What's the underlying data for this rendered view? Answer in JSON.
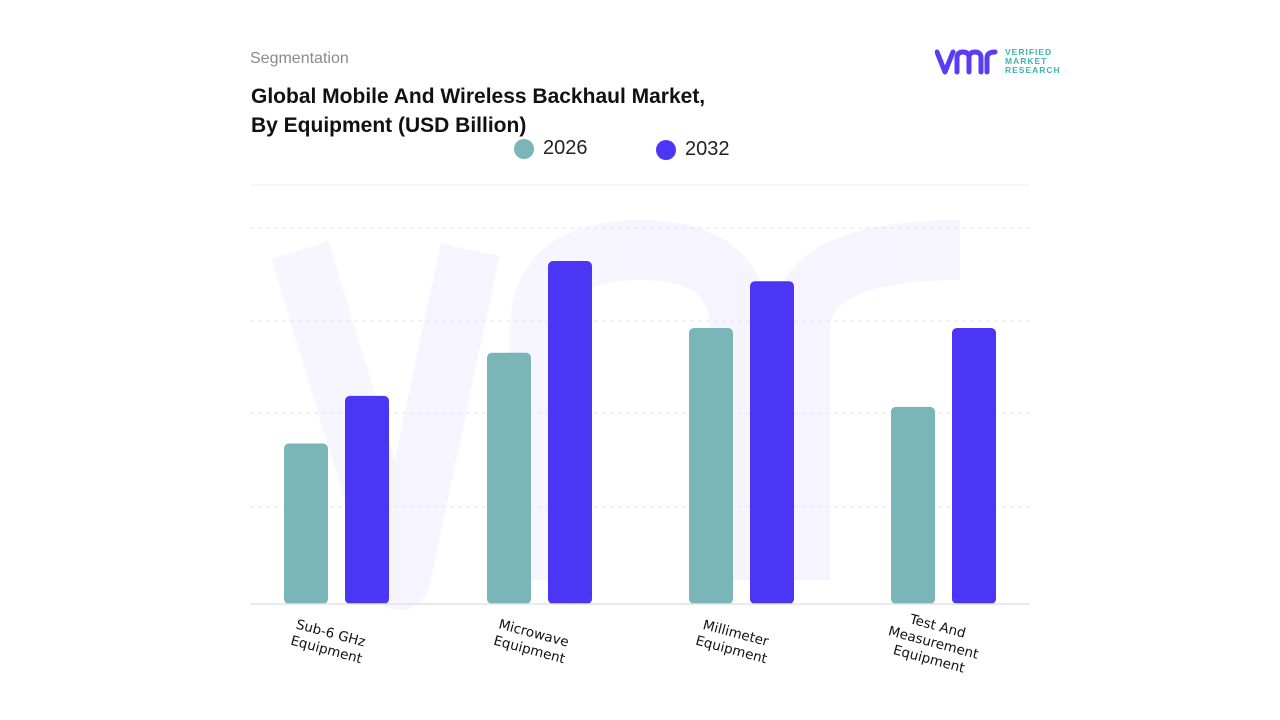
{
  "header": {
    "segment_label": "Segmentation",
    "title_line1": "Global Mobile And Wireless Backhaul Market,",
    "title_line2": "By Equipment (USD Billion)"
  },
  "logo": {
    "mark": "vmr",
    "line1": "VERIFIED",
    "line2": "MARKET",
    "line3": "RESEARCH",
    "mark_color": "#5b3cf5",
    "text_color": "#3fb3b0"
  },
  "chart_data": {
    "type": "bar",
    "title": "Global Mobile And Wireless Backhaul Market, By Equipment (USD Billion)",
    "categories": [
      "Sub-6 GHz Equipment",
      "Microwave Equipment",
      "Millimeter Equipment",
      "Test And Measurement Equipment"
    ],
    "category_label_lines": [
      [
        "Sub-6 GHz",
        "Equipment"
      ],
      [
        "Microwave",
        "Equipment"
      ],
      [
        "Millimeter",
        "Equipment"
      ],
      [
        "Test And",
        "Measurement",
        "Equipment"
      ]
    ],
    "series": [
      {
        "name": "2026",
        "color": "#7ab5b8",
        "values": [
          1.75,
          2.74,
          3.01,
          2.15
        ]
      },
      {
        "name": "2032",
        "color": "#4b36f5",
        "values": [
          2.27,
          3.74,
          3.52,
          3.01
        ]
      }
    ],
    "ylim": [
      0,
      4.1
    ],
    "grid": true,
    "legend_position": "top-center",
    "xlabel": "",
    "ylabel": ""
  }
}
